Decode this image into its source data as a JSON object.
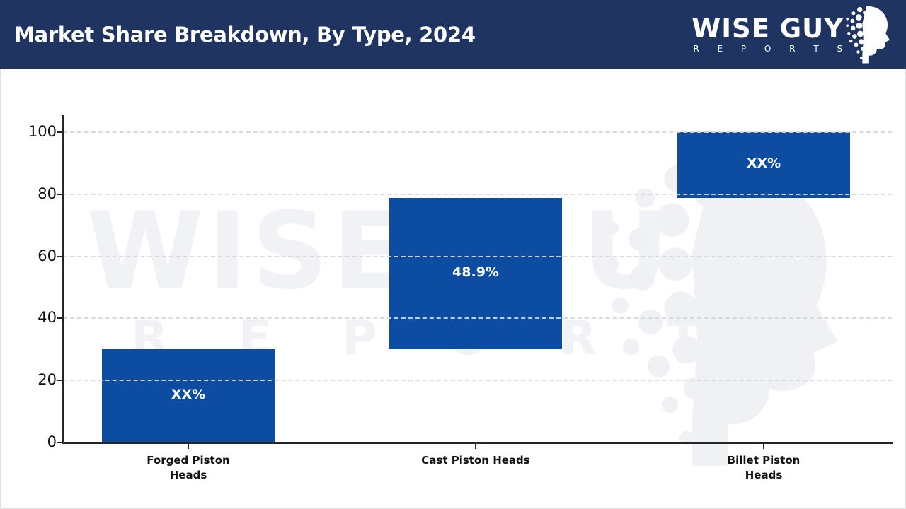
{
  "header": {
    "title": "Market Share Breakdown, By Type, 2024",
    "background_color": "#1f3461",
    "logo": {
      "line1": "WISE GUY",
      "line2": "R E P O R T S"
    }
  },
  "watermark": {
    "line1": "WISE G U Y",
    "line2": "R E P O R T S"
  },
  "chart_data": {
    "type": "bar",
    "subtype": "floating-segment (waterfall) market share bars",
    "title": "Market Share Breakdown, By Type, 2024",
    "categories": [
      "Forged Piston Heads",
      "Cast Piston Heads",
      "Billet Piston Heads"
    ],
    "category_label_lines": [
      [
        "Forged Piston",
        "Heads"
      ],
      [
        "Cast Piston Heads"
      ],
      [
        "Billet Piston",
        "Heads"
      ]
    ],
    "bars": [
      {
        "category": "Forged Piston Heads",
        "start": 0,
        "end": 30,
        "label": "XX%"
      },
      {
        "category": "Cast Piston Heads",
        "start": 30,
        "end": 78.9,
        "label": "48.9%"
      },
      {
        "category": "Billet Piston Heads",
        "start": 78.9,
        "end": 100,
        "label": "XX%"
      }
    ],
    "xlabel": "",
    "ylabel": "",
    "y_axis": {
      "min": 0,
      "max": 100,
      "ticks": [
        0,
        20,
        40,
        60,
        80,
        100
      ]
    },
    "grid": {
      "horizontal": true,
      "style": "dashed",
      "color": "#d9d9d9",
      "drawn_over_bars": true
    },
    "legend": "none",
    "bar_color": "#0d4da1",
    "bar_label_color": "#ffffff",
    "axis_color": "#262626",
    "tick_label_color": "#111111"
  }
}
